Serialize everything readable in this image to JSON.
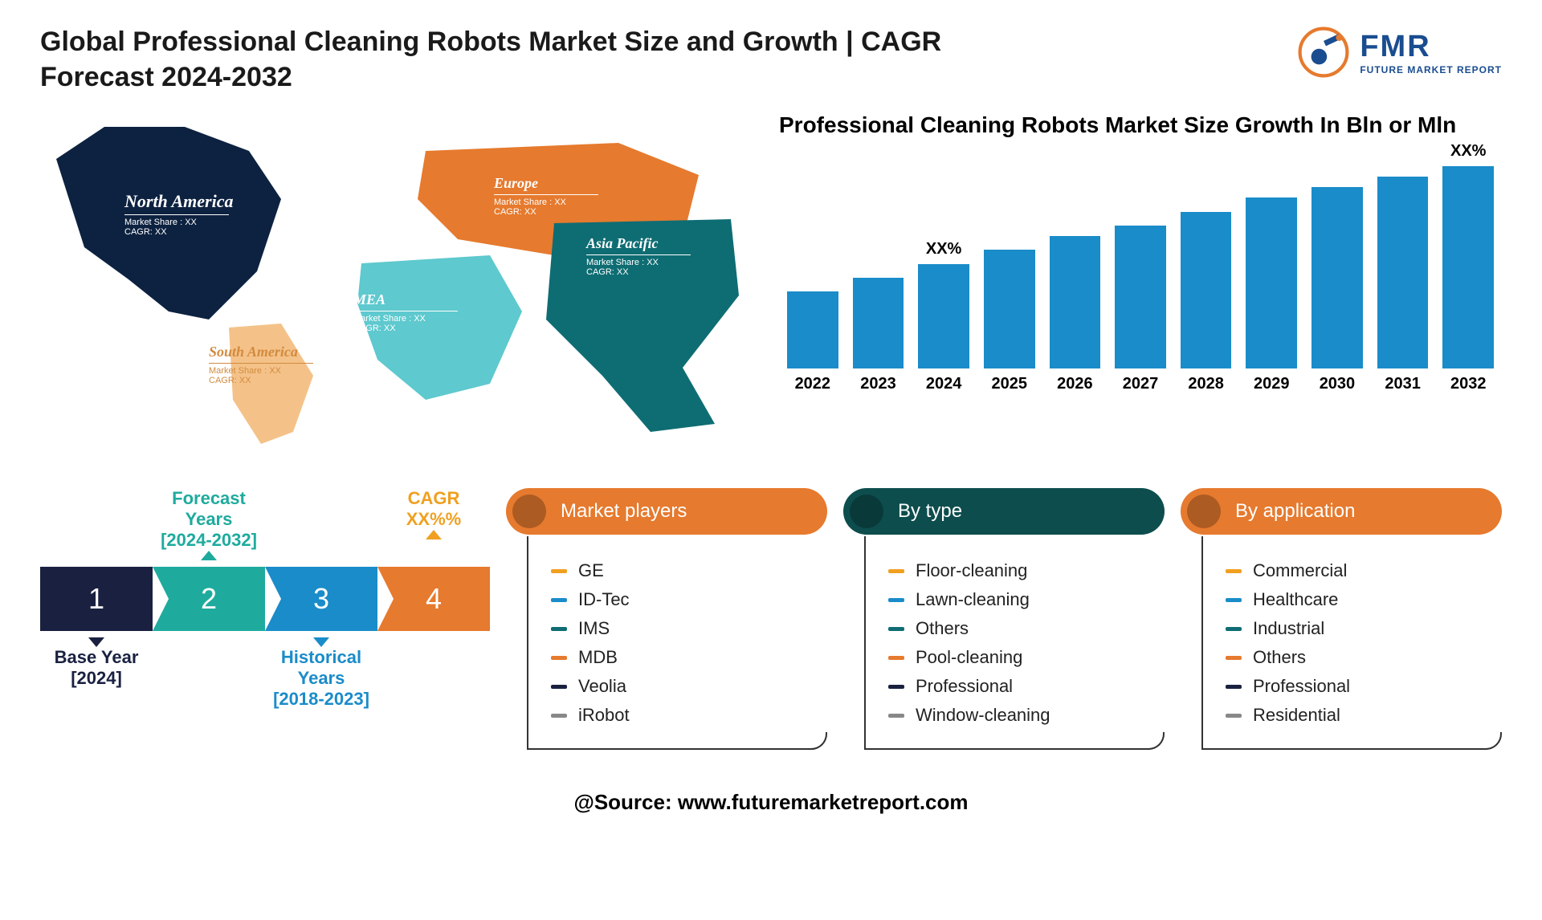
{
  "title": "Global Professional Cleaning Robots Market Size and Growth | CAGR Forecast 2024-2032",
  "logo": {
    "main": "FMR",
    "sub": "FUTURE MARKET REPORT"
  },
  "map": {
    "regions": {
      "north_america": {
        "name": "North America",
        "share": "Market Share : XX",
        "cagr": "CAGR: XX",
        "color": "#0d2240"
      },
      "south_america": {
        "name": "South America",
        "share": "Market Share : XX",
        "cagr": "CAGR: XX",
        "color": "#f4c289"
      },
      "mea": {
        "name": "MEA",
        "share": "Market Share : XX",
        "cagr": "CAGR: XX",
        "color": "#5ec9ce"
      },
      "europe": {
        "name": "Europe",
        "share": "Market Share : XX",
        "cagr": "CAGR: XX",
        "color": "#e67a2e"
      },
      "asia_pacific": {
        "name": "Asia Pacific",
        "share": "Market Share : XX",
        "cagr": "CAGR: XX",
        "color": "#0e6d73"
      }
    }
  },
  "chart": {
    "title": "Professional Cleaning Robots Market Size Growth In Bln or Mln",
    "years": [
      "2022",
      "2023",
      "2024",
      "2025",
      "2026",
      "2027",
      "2028",
      "2029",
      "2030",
      "2031",
      "2032"
    ],
    "values": [
      110,
      130,
      150,
      170,
      190,
      205,
      225,
      245,
      260,
      275,
      290
    ],
    "ymax": 300,
    "bar_color": "#1a8cc9",
    "badges": {
      "2024": "XX%",
      "2032": "XX%"
    }
  },
  "timeline": {
    "forecast": {
      "label": "Forecast Years",
      "range": "[2024-2032]",
      "color": "#1eab9e"
    },
    "cagr": {
      "label": "CAGR",
      "value": "XX%%",
      "color": "#f0a020"
    },
    "base": {
      "label": "Base Year",
      "range": "[2024]",
      "color": "#1a2140"
    },
    "historical": {
      "label": "Historical Years",
      "range": "[2018-2023]",
      "color": "#1a8cc9"
    },
    "segments": [
      "1",
      "2",
      "3",
      "4"
    ]
  },
  "segments": {
    "market_players": {
      "title": "Market players",
      "header_color": "#e67a2e",
      "items": [
        "GE",
        "ID-Tec",
        "IMS",
        "MDB",
        "Veolia",
        "iRobot"
      ],
      "dash_colors": [
        "#f0a020",
        "#1a8cc9",
        "#0e6d73",
        "#e67a2e",
        "#1a2140",
        "#888"
      ]
    },
    "by_type": {
      "title": "By type",
      "header_color": "#0d4d4d",
      "items": [
        "Floor-cleaning",
        "Lawn-cleaning",
        "Others",
        "Pool-cleaning",
        "Professional",
        "Window-cleaning"
      ],
      "dash_colors": [
        "#f0a020",
        "#1a8cc9",
        "#0e6d73",
        "#e67a2e",
        "#1a2140",
        "#888"
      ]
    },
    "by_application": {
      "title": "By application",
      "header_color": "#e67a2e",
      "items": [
        "Commercial",
        "Healthcare",
        "Industrial",
        "Others",
        "Professional",
        "Residential"
      ],
      "dash_colors": [
        "#f0a020",
        "#1a8cc9",
        "#0e6d73",
        "#e67a2e",
        "#1a2140",
        "#888"
      ]
    }
  },
  "source": "@Source: www.futuremarketreport.com"
}
